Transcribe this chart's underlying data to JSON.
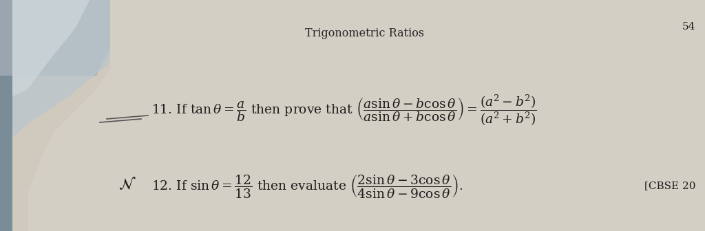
{
  "bg_color": "#ccc8c0",
  "page_color": "#d8d4cc",
  "spine_dark": "#8899a8",
  "spine_mid": "#a0b0bb",
  "spine_light": "#c0cdd4",
  "fold_color": "#d0ccc4",
  "title": "Trigonometric Ratios",
  "page_number": "54",
  "title_fontsize": 11.5,
  "q_fontsize": 13.5,
  "small_fontsize": 11,
  "text_color": "#1e1e1e",
  "title_color": "#252525",
  "q11_prefix": "11. If ",
  "q12_prefix": "12. If ",
  "cbse_tag": "[CBSE 20"
}
